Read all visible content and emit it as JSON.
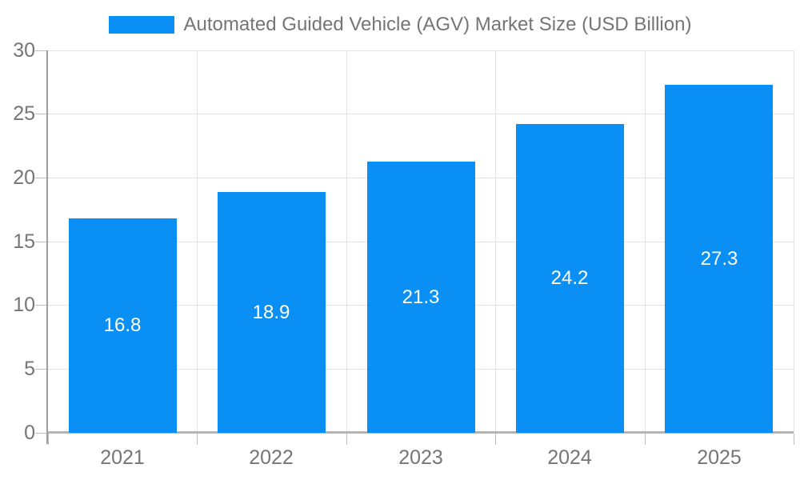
{
  "legend": {
    "label": "Automated Guided Vehicle (AGV) Market Size (USD Billion)"
  },
  "chart_data": {
    "type": "bar",
    "title": "Automated Guided Vehicle (AGV) Market Size (USD Billion)",
    "categories": [
      "2021",
      "2022",
      "2023",
      "2024",
      "2025"
    ],
    "values": [
      16.8,
      18.9,
      21.3,
      24.2,
      27.3
    ],
    "value_labels": [
      "16.8",
      "18.9",
      "21.3",
      "24.2",
      "27.3"
    ],
    "xlabel": "",
    "ylabel": "",
    "ylim": [
      0,
      30
    ],
    "yticks": [
      0,
      5,
      10,
      15,
      20,
      25,
      30
    ],
    "grid": true,
    "legend_position": "top",
    "value_label_position": "center-of-bar"
  },
  "colors": {
    "bar": "#0a8ff5",
    "value_label": "#ffffff",
    "tick_label": "#757575",
    "legend_text": "#757575",
    "gridline": "#e3e3e3",
    "axis_line": "#9e9e9e",
    "baseline": "#b5b5b5",
    "tick_mark": "#bdbdbd",
    "background": "#ffffff"
  }
}
